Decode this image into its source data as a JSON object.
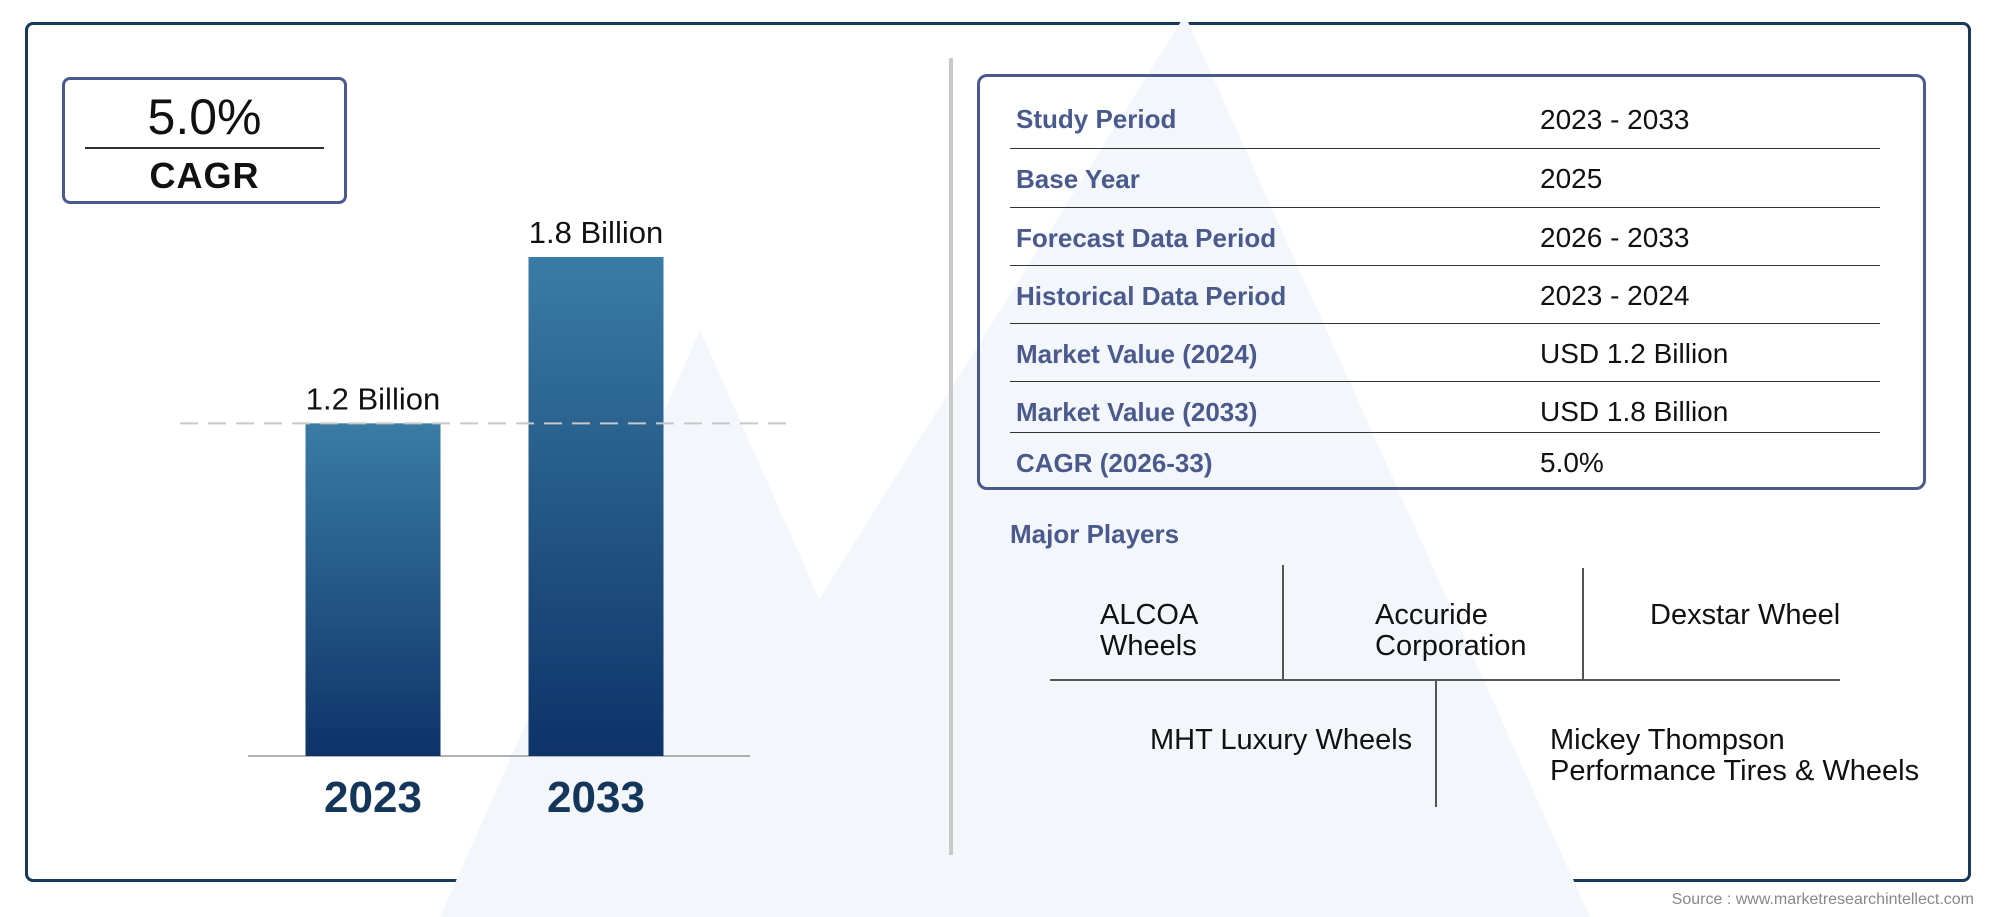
{
  "cagr_box": {
    "value": "5.0%",
    "label": "CAGR"
  },
  "chart_data": {
    "type": "bar",
    "categories": [
      "2023",
      "2033"
    ],
    "values": [
      1.2,
      1.8
    ],
    "data_labels": [
      "1.2 Billion",
      "1.8 Billion"
    ],
    "title": "",
    "xlabel": "",
    "ylabel": "",
    "unit": "Billion",
    "reference_line": 1.2,
    "colors": {
      "bar_top": "#3a7ca5",
      "bar_bottom": "#0d3368",
      "category_label": "#14365a"
    }
  },
  "market_table": [
    {
      "key": "Study Period",
      "value": "2023 - 2033"
    },
    {
      "key": "Base Year",
      "value": "2025"
    },
    {
      "key": "Forecast Data Period",
      "value": "2026 - 2033"
    },
    {
      "key": "Historical Data Period",
      "value": "2023 - 2024"
    },
    {
      "key": "Market Value (2024)",
      "value": "USD 1.2 Billion"
    },
    {
      "key": "Market Value (2033)",
      "value": "USD 1.8 Billion"
    },
    {
      "key": "CAGR (2026-33)",
      "value": "5.0%"
    }
  ],
  "major_players": {
    "title": "Major Players",
    "row1": [
      "ALCOA\nWheels",
      "Accuride\nCorporation",
      "Dexstar Wheel"
    ],
    "row2": [
      "MHT Luxury Wheels",
      "Mickey Thompson\nPerformance Tires & Wheels"
    ]
  },
  "source": "Source : www.marketresearchintellect.com",
  "colors": {
    "frame": "#173a5a",
    "accent": "#4a5a8c"
  }
}
